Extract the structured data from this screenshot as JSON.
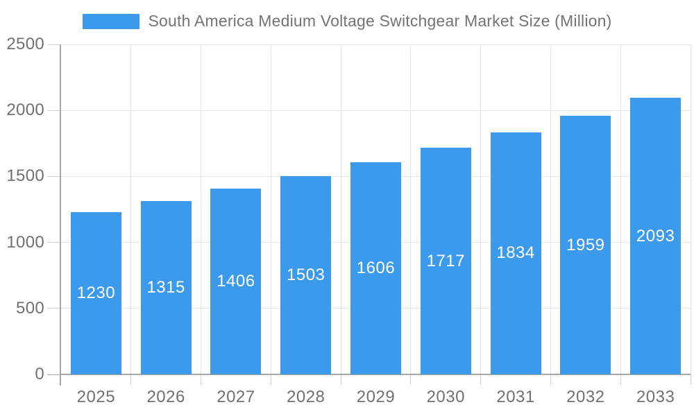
{
  "chart_data": {
    "type": "bar",
    "title": "South America Medium Voltage Switchgear Market Size (Million)",
    "categories": [
      "2025",
      "2026",
      "2027",
      "2028",
      "2029",
      "2030",
      "2031",
      "2032",
      "2033"
    ],
    "values": [
      1230,
      1315,
      1406,
      1503,
      1606,
      1717,
      1834,
      1959,
      2093
    ],
    "xlabel": "",
    "ylabel": "",
    "ylim": [
      0,
      2500
    ],
    "yticks": [
      0,
      500,
      1000,
      1500,
      2000,
      2500
    ],
    "grid": true,
    "legend_position": "top-center",
    "bar_labels_inside": true,
    "colors": {
      "bar": "#3C9AEC",
      "bar_label": "#FFFFFF",
      "grid": "#E5E5E5",
      "axis": "#A6A6A6",
      "tick_mark": "#CFCFCF",
      "tick_text": "#707070",
      "legend_text": "#737373",
      "background": "#FFFFFF"
    }
  }
}
